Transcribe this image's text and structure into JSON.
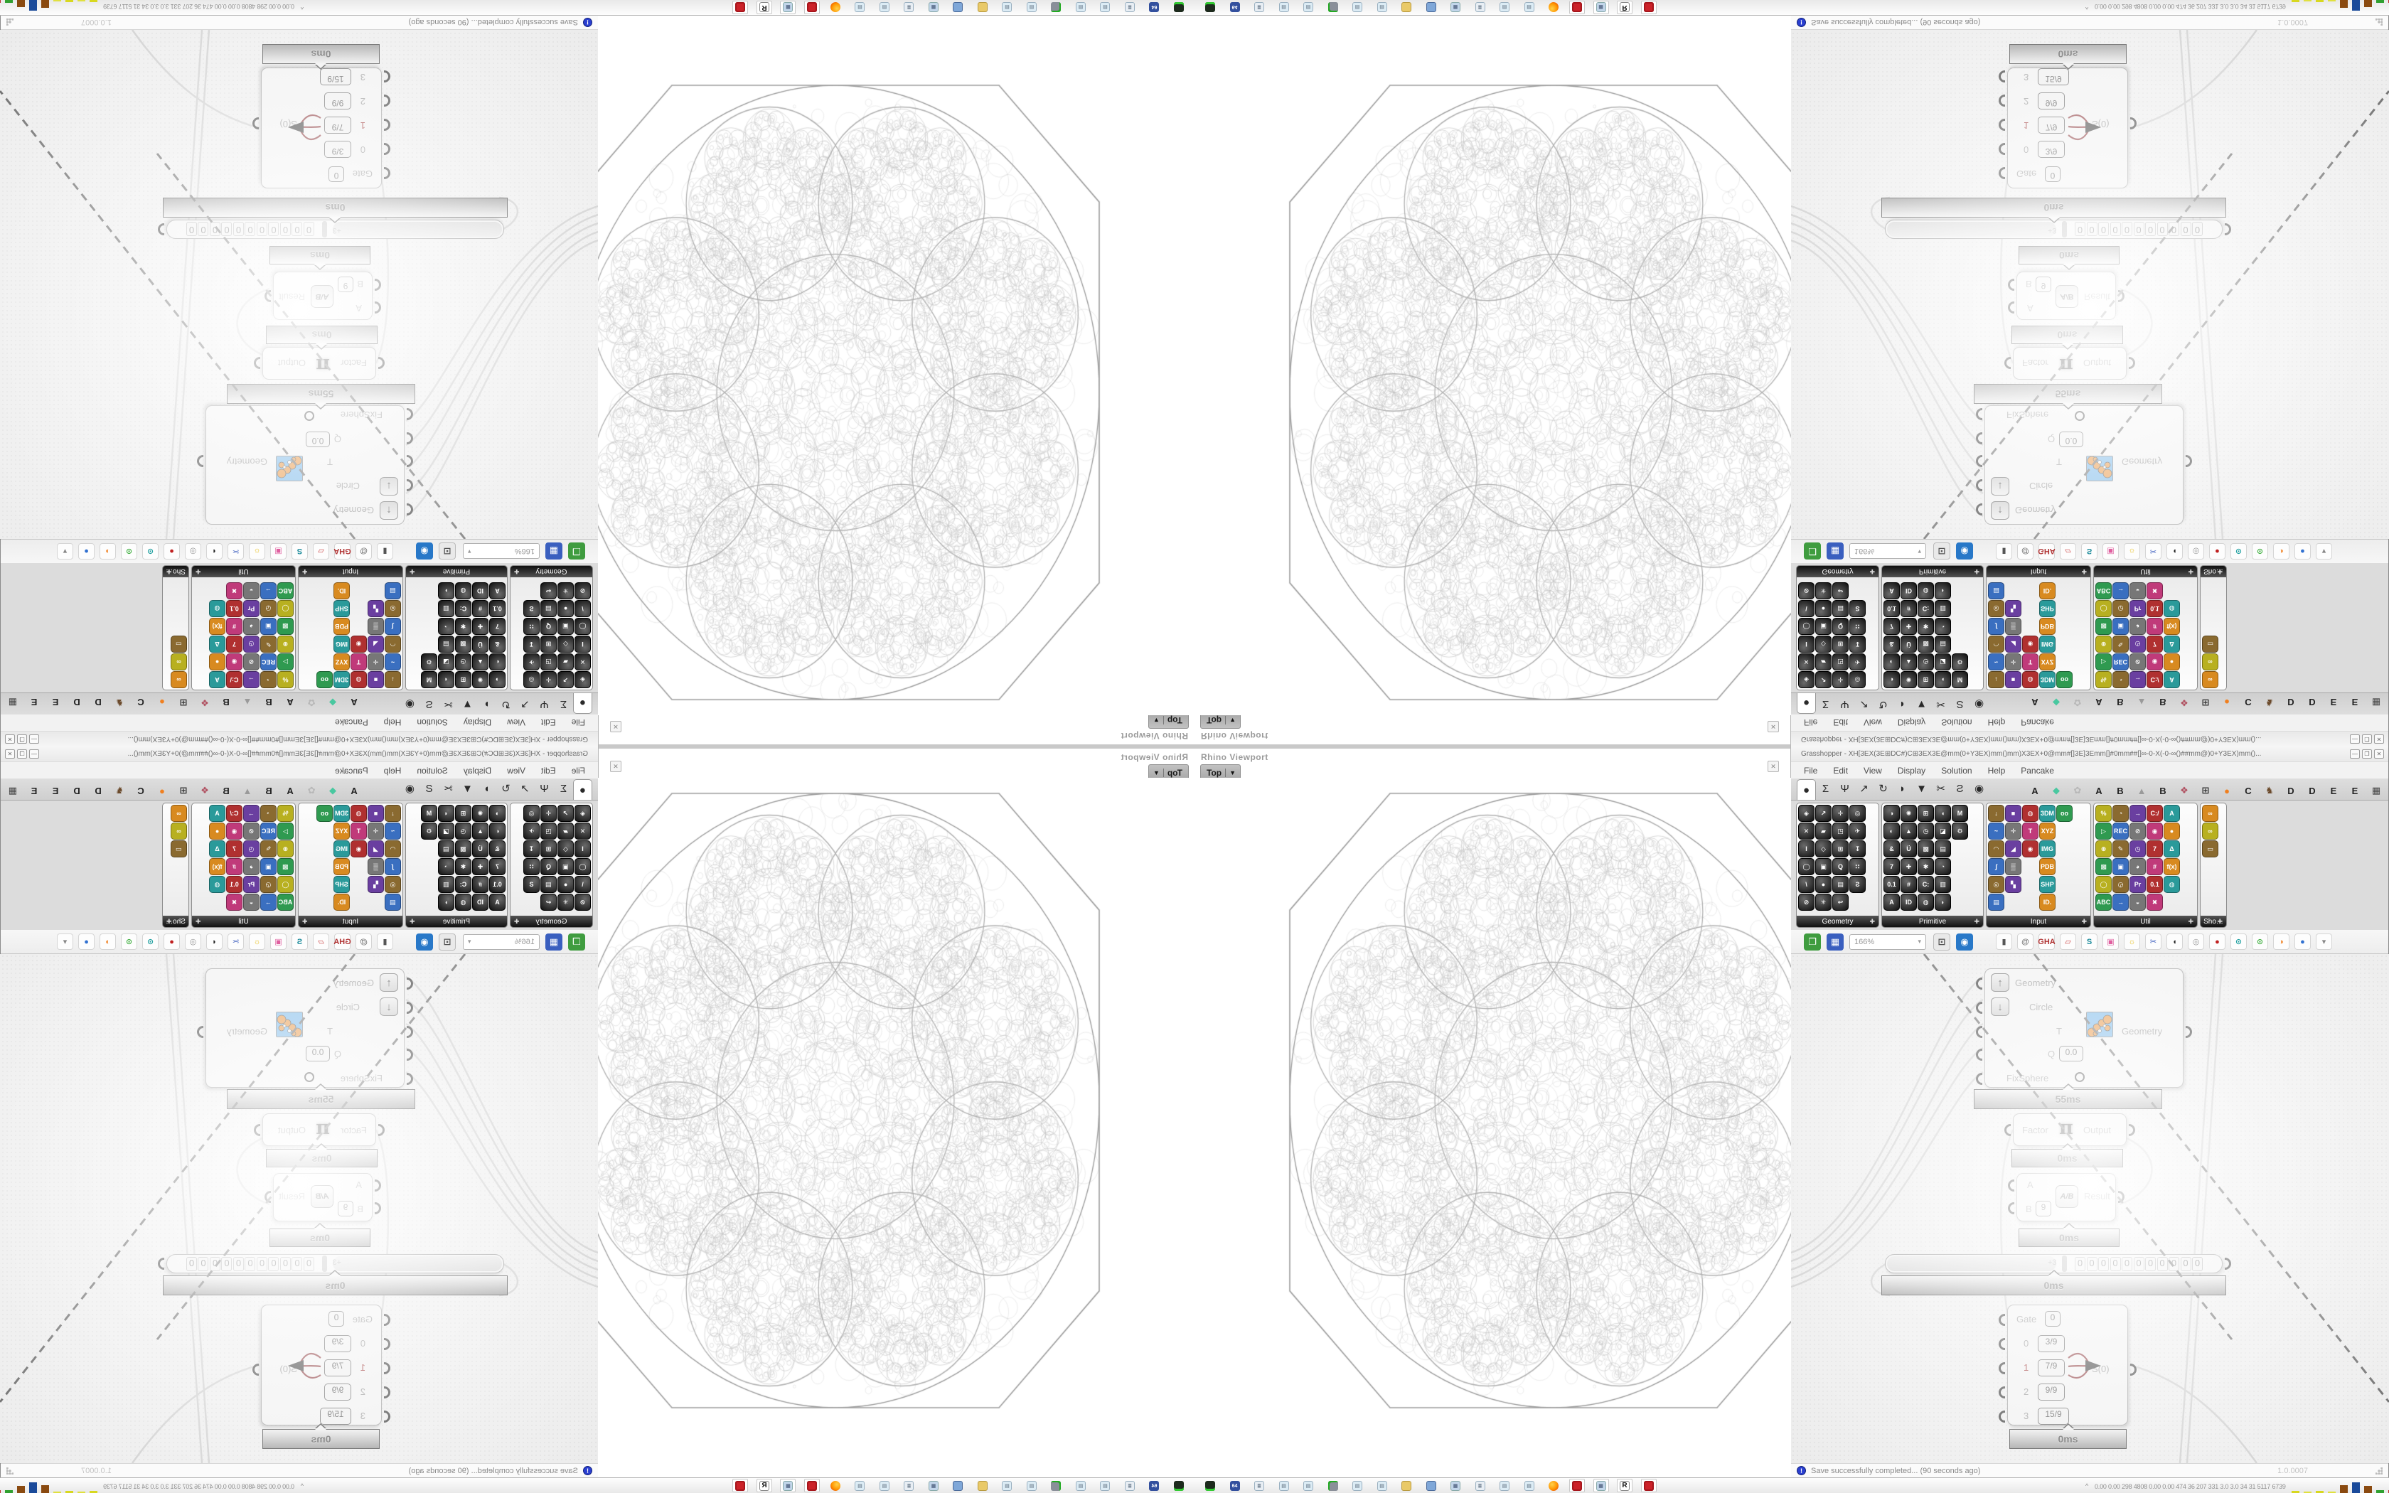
{
  "rhino_viewport": {
    "title": "Rhino Viewport",
    "tab_label": "Top",
    "tab_caret": "▼",
    "close_glyph": "✕"
  },
  "gh": {
    "titlebar": {
      "title": "Grasshopper - XH[3EX(3E⊞DC#)C⊞3EX3E@mm(0+Y3EX)mm()mm)X3EX+0@mm#[]3E]3Emm[]#0mm##[]∞-0-X(-0-∞()##mm@)0+Y3EX)mm()...",
      "min": "—",
      "max": "❐",
      "close": "✕"
    },
    "menus": [
      "File",
      "Edit",
      "View",
      "Display",
      "Solution",
      "Help",
      "Pancake"
    ],
    "category_tabs": [
      {
        "g": "●"
      },
      {
        "g": "Σ"
      },
      {
        "g": "Ψ"
      },
      {
        "g": "↗"
      },
      {
        "g": "↻"
      },
      {
        "g": "◗"
      },
      {
        "g": "▼"
      },
      {
        "g": "✂"
      },
      {
        "g": "Ƨ"
      },
      {
        "g": "◉"
      }
    ],
    "plugin_tabs": [
      {
        "g": "A",
        "c": "#222222"
      },
      {
        "g": "◆",
        "c": "#49c8a0"
      },
      {
        "g": "✿",
        "c": "#b8b8b8"
      },
      {
        "g": "A",
        "c": "#222222"
      },
      {
        "g": "B",
        "c": "#222222"
      },
      {
        "g": "▲",
        "c": "#9a9a9a"
      },
      {
        "g": "B",
        "c": "#222222"
      },
      {
        "g": "❖",
        "c": "#b05060"
      },
      {
        "g": "⊞",
        "c": "#333333"
      },
      {
        "g": "●",
        "c": "#f08020"
      },
      {
        "g": "C",
        "c": "#222222"
      },
      {
        "g": "♞",
        "c": "#6b4a2b"
      },
      {
        "g": "D",
        "c": "#222222"
      },
      {
        "g": "D",
        "c": "#222222"
      },
      {
        "g": "E",
        "c": "#222222"
      },
      {
        "g": "E",
        "c": "#222222"
      },
      {
        "g": "▦",
        "c": "#444444"
      },
      {
        "g": "E",
        "c": "#222222"
      }
    ],
    "palette": {
      "accent_colors": [
        "#b03030",
        "#3a6fc0",
        "#d88a20",
        "#6a3fa0",
        "#2f9a50",
        "#c03a7a",
        "#8a6a30",
        "#2a9a9a",
        "#777777",
        "#b8b020"
      ],
      "groups": [
        {
          "label": "Geometry",
          "cols": 4,
          "style": "dark",
          "icons": [
            "◈",
            "↗",
            "✛",
            "◎",
            "✕",
            "▰",
            "◳",
            "✈",
            "I",
            "◇",
            "⊞",
            "↧",
            "◯",
            "▣",
            "Q",
            "∷",
            "\\",
            "●",
            "▤",
            "Ƨ",
            "⊘",
            "✳",
            "↩"
          ]
        },
        {
          "label": "Primitive",
          "cols": 5,
          "style": "dark",
          "icons": [
            "◑",
            "✺",
            "⊞",
            "◖",
            "M",
            "◐",
            "▲",
            "◷",
            "◪",
            "⚙",
            "&",
            "Ü",
            "▩",
            "▤",
            "",
            "7",
            "✚",
            "✱",
            "◔",
            "",
            "0.1",
            "#",
            "C:",
            "▥",
            "",
            "A",
            "ID",
            "◍",
            "◗",
            ""
          ]
        },
        {
          "label": "Input",
          "cols": 5,
          "style": "colr",
          "icons": [
            "↓",
            "■",
            "◍",
            "3DM",
            "oo",
            "~",
            "✛",
            "T",
            "XYZ",
            "",
            "◠",
            "◢",
            "◉",
            "IMG",
            "",
            "∫",
            "▒",
            "",
            "PDB",
            "",
            "◎",
            "▚",
            "",
            "SHP",
            "",
            "▤",
            "",
            "",
            "ID.",
            ""
          ]
        },
        {
          "label": "Util",
          "cols": 5,
          "style": "colr",
          "icons": [
            "%",
            "◔",
            "→",
            "C:/",
            "A",
            "▷",
            "REC",
            "⊘",
            "◉",
            "●",
            "⊕",
            "✎",
            "◷",
            "7",
            "Δ",
            "▩",
            "▣",
            "◕",
            "#",
            "f(x)",
            "◯",
            "◶",
            "Pr",
            "0.1",
            "◍",
            "ABC",
            "→",
            "◒",
            "✖",
            ""
          ]
        },
        {
          "label": "Sho…",
          "cols": 1,
          "style": "colr",
          "icons": [
            "∞",
            "∞",
            "▭"
          ]
        }
      ]
    },
    "canvas_toolbar": {
      "open_glyph": "❐",
      "save_glyph": "▦",
      "zoom_value": "166%",
      "zoom_caret": "▾",
      "extents_glyph": "⊡",
      "eye_glyph": "◉",
      "right_icons": [
        {
          "n": "profiler",
          "g": "▮",
          "c": "#555555"
        },
        {
          "n": "remote-control",
          "g": "@",
          "c": "#777777"
        },
        {
          "n": "gha-loader",
          "g": "GHA",
          "c": "#b03333"
        },
        {
          "n": "sketch-tool",
          "g": "▱",
          "c": "#cc4444"
        },
        {
          "n": "object-finder",
          "g": "S",
          "c": "#1a8a9a"
        },
        {
          "n": "cluster-box",
          "g": "▣",
          "c": "#e060a0"
        },
        {
          "n": "hints-bulb",
          "g": "☼",
          "c": "#e8c020"
        },
        {
          "n": "wire-display",
          "g": "✂",
          "c": "#3355bb"
        },
        {
          "n": "preview-off",
          "g": "◖",
          "c": "#222222"
        },
        {
          "n": "preview-wireframe",
          "g": "◎",
          "c": "#999999"
        },
        {
          "n": "preview-shaded",
          "g": "●",
          "c": "#c02020"
        },
        {
          "n": "selection-pin-teal",
          "g": "⊙",
          "c": "#20a0a0"
        },
        {
          "n": "selection-pin-green",
          "g": "⊙",
          "c": "#40b040"
        },
        {
          "n": "preview-ball",
          "g": "◑",
          "c": "#f08020"
        },
        {
          "n": "display-mode-ball",
          "g": "●",
          "c": "#3070d0"
        },
        {
          "n": "display-caret",
          "g": "▾",
          "c": "#888888"
        }
      ]
    },
    "status": {
      "message": "Save successfully completed... (90 seconds ago)",
      "icon_glyph": "!",
      "version": "1.0.0007"
    },
    "nodes": {
      "fixsphere": {
        "inputs": [
          "Geometry",
          "Circle",
          "T",
          "Q",
          "FixSphere"
        ],
        "q_value": "0.0",
        "output": "Geometry",
        "time": "55ms",
        "up_glyph": "↑",
        "down_glyph": "↓"
      },
      "pi": {
        "input": "Factor",
        "glyph": "π",
        "output": "Output",
        "time": "0ms"
      },
      "division": {
        "a": "A",
        "b": "B",
        "b_value": "9",
        "icon": "A/B",
        "output": "Result",
        "time": "0ms"
      },
      "scroller": {
        "grip": "+3",
        "digits": [
          "0",
          "0",
          "0",
          "0",
          "0",
          "0",
          "0",
          "0",
          "0",
          "0",
          "0"
        ],
        "time": "0ms"
      },
      "gate": {
        "gate_label": "Gate",
        "gate_value": "0",
        "rows": [
          {
            "i": "0",
            "v": "3/9"
          },
          {
            "i": "1",
            "v": "7/9"
          },
          {
            "i": "2",
            "v": "9/9"
          },
          {
            "i": "3",
            "v": "15/9"
          }
        ],
        "output": "S(0)",
        "time": "0ms",
        "arrow": "➤"
      }
    }
  },
  "taskbar": {
    "icons": [
      {
        "k": "drive",
        "t": ""
      },
      {
        "k": "floppy",
        "t": "64"
      },
      {
        "k": "script",
        "t": "≣"
      },
      {
        "k": "notepad",
        "t": "▤"
      },
      {
        "k": "notepad",
        "t": "▤"
      },
      {
        "k": "monitor",
        "t": ""
      },
      {
        "k": "notepad",
        "t": "▤"
      },
      {
        "k": "notepad",
        "t": "▤"
      },
      {
        "k": "folder",
        "t": ""
      },
      {
        "k": "computer",
        "t": ""
      },
      {
        "k": "calc",
        "t": "▦"
      },
      {
        "k": "script",
        "t": "≣"
      },
      {
        "k": "notepad",
        "t": "▤"
      },
      {
        "k": "notepad",
        "t": "▤"
      },
      {
        "k": "firefox",
        "t": ""
      }
    ],
    "running_icons": [
      {
        "k": "addon",
        "t": ""
      },
      {
        "k": "calc",
        "t": "▦"
      },
      {
        "k": "rhino",
        "t": "R"
      },
      {
        "k": "addon",
        "t": ""
      }
    ],
    "tray_toggle": "^",
    "tray_text": "0.00 0.00 298 4808 0.00 0.00 474 36 207 331 3.0 3.0 34 31 5117 6739",
    "tray_bars": [
      {
        "h": 4,
        "c": "#d8d820"
      },
      {
        "h": 3,
        "c": "#e0e040"
      },
      {
        "h": 4,
        "c": "#d8d820"
      },
      {
        "h": 3,
        "c": "#e0e040"
      },
      {
        "h": 12,
        "c": "#8a4a10"
      },
      {
        "h": 16,
        "c": "#1a4a9a"
      },
      {
        "h": 11,
        "c": "#8a4a10"
      },
      {
        "h": 5,
        "c": "#30a030"
      },
      {
        "h": 5,
        "c": "#c03030"
      }
    ]
  }
}
